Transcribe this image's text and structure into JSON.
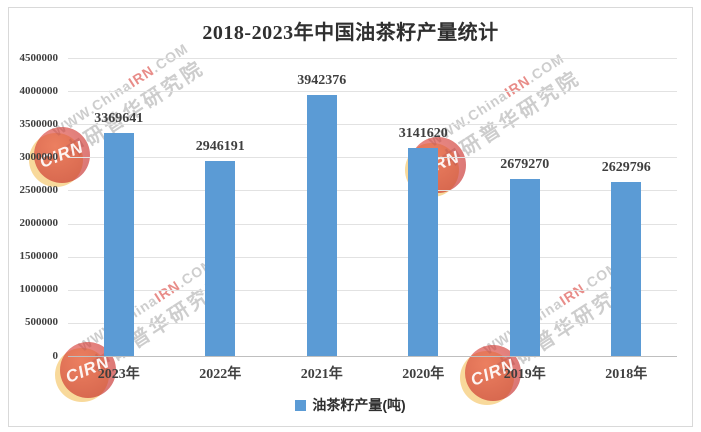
{
  "title": "2018-2023年中国油茶籽产量统计",
  "chart_data": {
    "type": "bar",
    "categories": [
      "2023年",
      "2022年",
      "2021年",
      "2020年",
      "2019年",
      "2018年"
    ],
    "series": [
      {
        "name": "油茶籽产量(吨)",
        "values": [
          3369641,
          2946191,
          3942376,
          3141620,
          2679270,
          2629796
        ]
      }
    ],
    "title": "2018-2023年中国油茶籽产量统计",
    "xlabel": "",
    "ylabel": "",
    "ylim": [
      0,
      4500000
    ],
    "ytick_step": 500000,
    "ytick_labels": [
      "0",
      "500000",
      "1000000",
      "1500000",
      "2000000",
      "2500000",
      "3000000",
      "3500000",
      "4000000",
      "4500000"
    ],
    "grid": "horizontal",
    "legend_position": "bottom",
    "bar_color": "#5b9bd5",
    "data_labels_visible": true
  },
  "legend": {
    "label": "油茶籽产量(吨)",
    "marker_color": "#5b9bd5"
  },
  "watermark": {
    "line1_prefix": "WWW.China",
    "line1_highlight": "IRN",
    "line1_suffix": ".COM",
    "line2": "中研普华研究院",
    "logo_text": "CIRN"
  },
  "colors": {
    "bar": "#5b9bd5",
    "gridline": "#e2e2e2",
    "axis_line": "#bfbfbf",
    "text": "#3f3f3f",
    "watermark_gray": "#919191",
    "watermark_red": "#d84038",
    "logo_red": "#c12a22",
    "logo_yellow": "#f3ba49"
  }
}
